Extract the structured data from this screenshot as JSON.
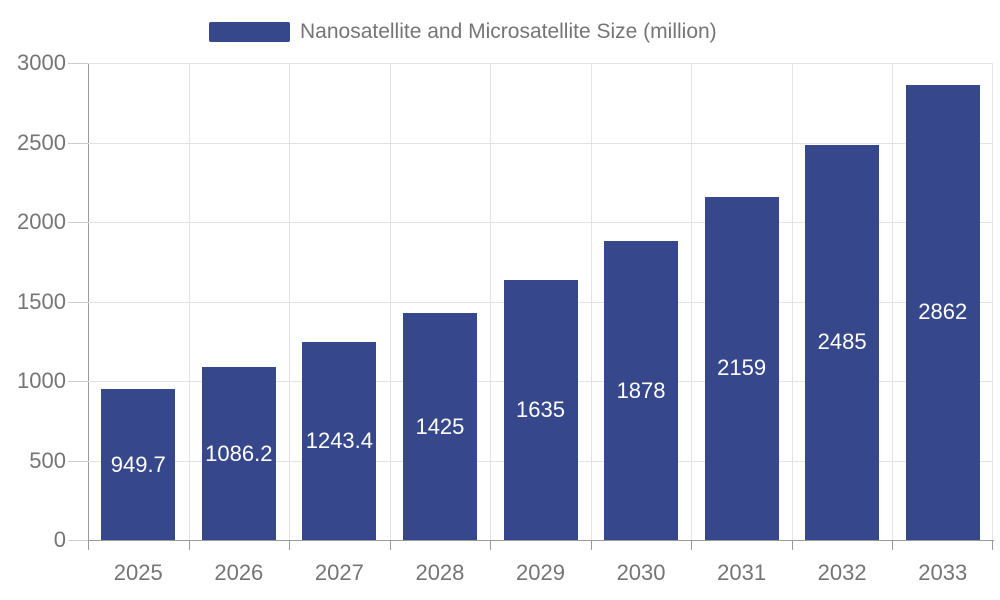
{
  "chart_data": {
    "type": "bar",
    "title": "Nanosatellite and Microsatellite Size (million)",
    "categories": [
      "2025",
      "2026",
      "2027",
      "2028",
      "2029",
      "2030",
      "2031",
      "2032",
      "2033"
    ],
    "values": [
      949.7,
      1086.2,
      1243.4,
      1425,
      1635,
      1878,
      2159,
      2485,
      2862
    ],
    "value_labels": [
      "949.7",
      "1086.2",
      "1243.4",
      "1425",
      "1635",
      "1878",
      "2159",
      "2485",
      "2862"
    ],
    "xlabel": "",
    "ylabel": "",
    "ylim": [
      0,
      3000
    ],
    "yticks": [
      0,
      500,
      1000,
      1500,
      2000,
      2500,
      3000
    ],
    "ytick_labels": [
      "0",
      "500",
      "1000",
      "1500",
      "2000",
      "2500",
      "3000"
    ],
    "grid": true,
    "legend_position": "top",
    "bar_color": "#36478C",
    "value_label_color": "#ffffff"
  },
  "colors": {
    "bar": "#36478C",
    "grid": "#e3e3e3",
    "axis": "#999999",
    "tick": "#cccccc",
    "tick_label": "#757575",
    "background": "#ffffff"
  }
}
